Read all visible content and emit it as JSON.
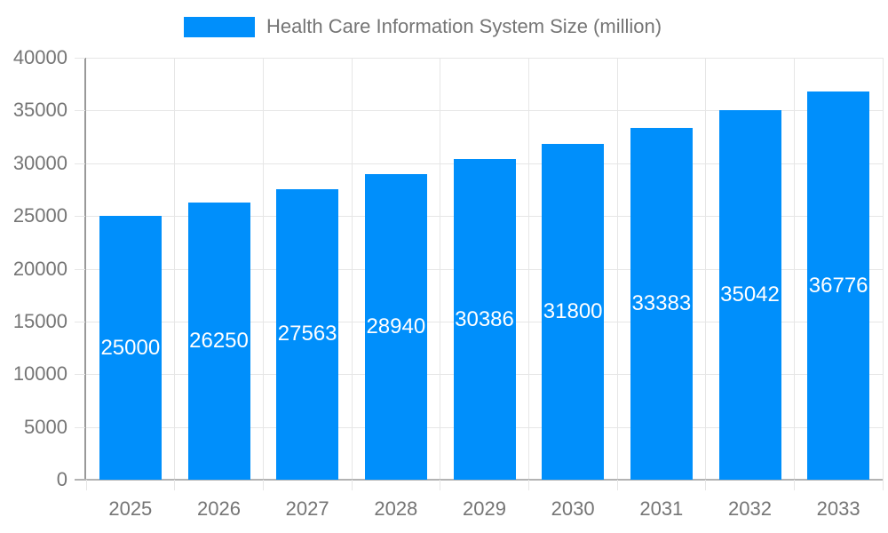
{
  "chart_data": {
    "type": "bar",
    "title": "Health Care Information System Size (million)",
    "categories": [
      "2025",
      "2026",
      "2027",
      "2028",
      "2029",
      "2030",
      "2031",
      "2032",
      "2033"
    ],
    "series": [
      {
        "name": "Health Care Information System Size (million)",
        "values": [
          25000,
          26250,
          27563,
          28940,
          30386,
          31800,
          33383,
          35042,
          36776
        ]
      }
    ],
    "value_labels": [
      "25000",
      "26250",
      "27563",
      "28940",
      "30386",
      "31800",
      "33383",
      "35042",
      "36776"
    ],
    "xlabel": "",
    "ylabel": "",
    "ylim": [
      0,
      40000
    ],
    "ytick_step": 5000,
    "yticks": [
      0,
      5000,
      10000,
      15000,
      20000,
      25000,
      30000,
      35000,
      40000
    ],
    "ytick_labels": [
      "0",
      "5000",
      "10000",
      "15000",
      "20000",
      "25000",
      "30000",
      "35000",
      "40000"
    ],
    "grid": true,
    "legend_position": "top",
    "colors": {
      "bar": "#008FFB",
      "gridline": "#e6e6e6",
      "axis_line": "#999999",
      "baseline": "#b3b3b3",
      "axis_label": "#757575",
      "value_label": "#ffffff",
      "background": "#ffffff"
    }
  }
}
